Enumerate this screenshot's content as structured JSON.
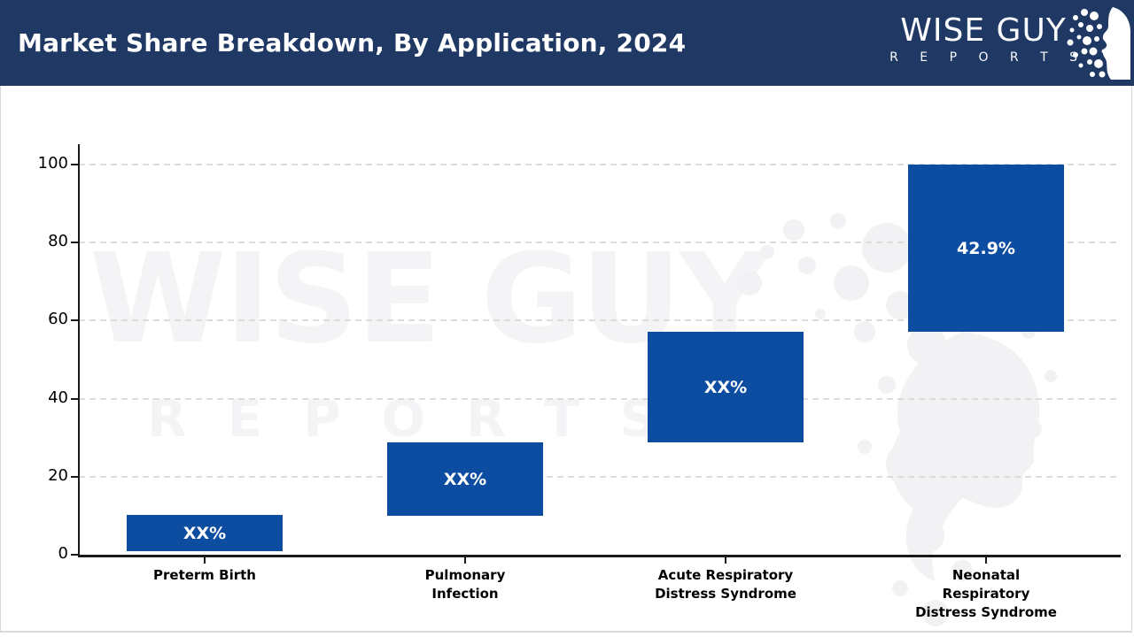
{
  "header": {
    "title": "Market Share Breakdown, By Application, 2024",
    "bg_color": "#1f3864",
    "logo": {
      "line1": "WISE GUY",
      "line2": "R E P O R T S"
    }
  },
  "watermark": {
    "line1": "WISE GUY",
    "line2": "REPORTS"
  },
  "chart_data": {
    "type": "bar",
    "subtype": "floating-segment-waterfall",
    "title": "Market Share Breakdown, By Application, 2024",
    "categories": [
      "Preterm Birth",
      "Pulmonary\nInfection",
      "Acute Respiratory\nDistress Syndrome",
      "Neonatal\nRespiratory\nDistress Syndrome"
    ],
    "series": [
      {
        "name": "Market Share (%)",
        "segments": [
          {
            "start": 1.0,
            "end": 10.1,
            "label": "XX%"
          },
          {
            "start": 9.9,
            "end": 28.7,
            "label": "XX%"
          },
          {
            "start": 28.7,
            "end": 57.1,
            "label": "XX%"
          },
          {
            "start": 57.1,
            "end": 100,
            "label": "42.9%"
          }
        ]
      }
    ],
    "ylim": [
      0,
      100
    ],
    "yticks": [
      0,
      20,
      40,
      60,
      80,
      100
    ],
    "xlabel": "",
    "ylabel": "",
    "legend": "none",
    "grid": {
      "horizontal": true,
      "style": "dashed",
      "color": "#dcdcdc"
    },
    "bar_color": "#0d4da1",
    "bar_label_color": "#ffffff",
    "axis_color": "#1a1a1a"
  }
}
